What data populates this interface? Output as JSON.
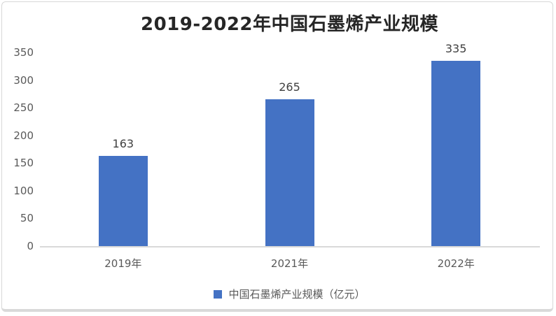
{
  "chart_data": {
    "type": "bar",
    "title": "2019-2022年中国石墨烯产业规模",
    "categories": [
      "2019年",
      "2021年",
      "2022年"
    ],
    "series": [
      {
        "name": "中国石墨烯产业规模（亿元）",
        "values": [
          163,
          265,
          335
        ]
      }
    ],
    "data_labels": true,
    "xlabel": "",
    "ylabel": "",
    "ylim": [
      0,
      350
    ],
    "yticks": [
      0,
      50,
      100,
      150,
      200,
      250,
      300,
      350
    ],
    "grid": false,
    "legend_position": "bottom",
    "colors": {
      "bar": "#4472C4",
      "title_text": "#262626",
      "axis_text": "#595959",
      "value_label_text": "#404040",
      "axis_line": "#D9D9D9",
      "card_border": "#D9D9D9",
      "background": "#FFFFFF"
    }
  }
}
